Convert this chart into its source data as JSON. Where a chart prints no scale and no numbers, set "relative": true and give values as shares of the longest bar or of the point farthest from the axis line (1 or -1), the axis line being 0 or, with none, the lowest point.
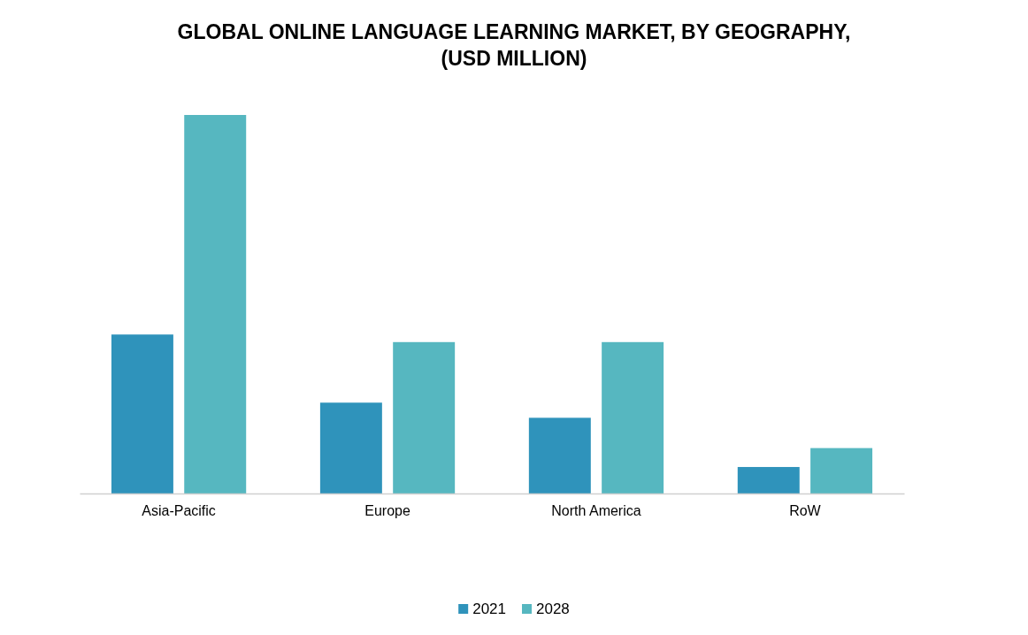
{
  "chart_data": {
    "type": "bar",
    "title": "GLOBAL ONLINE LANGUAGE LEARNING MARKET, BY GEOGRAPHY, (USD MILLION)",
    "categories": [
      "Asia-Pacific",
      "Europe",
      "North America",
      "RoW"
    ],
    "relative": true,
    "series": [
      {
        "name": "2021",
        "color": "#2f93bb",
        "values": [
          0.42,
          0.24,
          0.2,
          0.07
        ]
      },
      {
        "name": "2028",
        "color": "#56b7c0",
        "values": [
          1,
          0.4,
          0.4,
          0.12
        ]
      }
    ],
    "legend": "bottom"
  }
}
